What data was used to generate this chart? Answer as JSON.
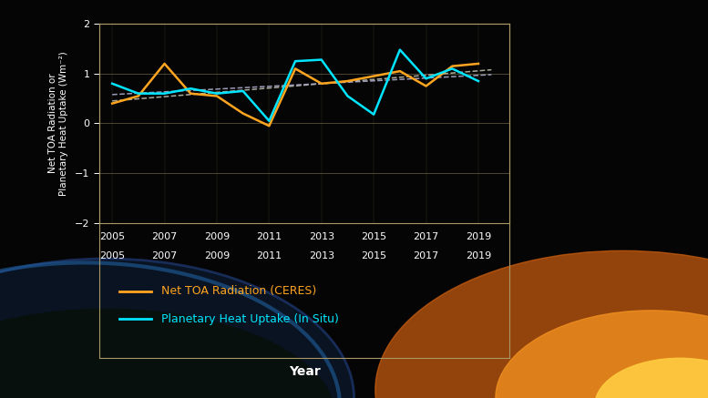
{
  "years": [
    2005,
    2006,
    2007,
    2008,
    2009,
    2010,
    2011,
    2012,
    2013,
    2014,
    2015,
    2016,
    2017,
    2018,
    2019
  ],
  "ceres_values": [
    0.4,
    0.55,
    1.2,
    0.6,
    0.55,
    0.2,
    -0.05,
    1.1,
    0.8,
    0.85,
    0.95,
    1.05,
    0.75,
    1.15,
    1.2
  ],
  "insitu_values": [
    0.8,
    0.6,
    0.6,
    0.7,
    0.6,
    0.65,
    0.05,
    1.25,
    1.28,
    0.55,
    0.18,
    1.48,
    0.9,
    1.1,
    0.85
  ],
  "ceres_color": "#FFA520",
  "insitu_color": "#00E5FF",
  "trend_color_ceres": "#BBBBAA",
  "trend_color_insitu": "#AAAACC",
  "spine_color": "#AA9966",
  "text_color": "#FFFFFF",
  "xlabel": "Year",
  "ylabel": "Net TOA Radiation or\nPlanetary Heat Uptake (Wm⁻²)",
  "legend_label_ceres": "Net TOA Radiation (CERES)",
  "legend_label_insitu": "Planetary Heat Uptake (In Situ)",
  "xlim": [
    2004.5,
    2020.2
  ],
  "ylim": [
    -2,
    2
  ],
  "xticks": [
    2005,
    2007,
    2009,
    2011,
    2013,
    2015,
    2017,
    2019
  ],
  "yticks": [
    -2,
    -1,
    0,
    1,
    2
  ],
  "linewidth": 1.8,
  "bg_color": "#050505",
  "plot_area_top_color": "#0a0a18",
  "plot_area_bot_color": "#050505"
}
